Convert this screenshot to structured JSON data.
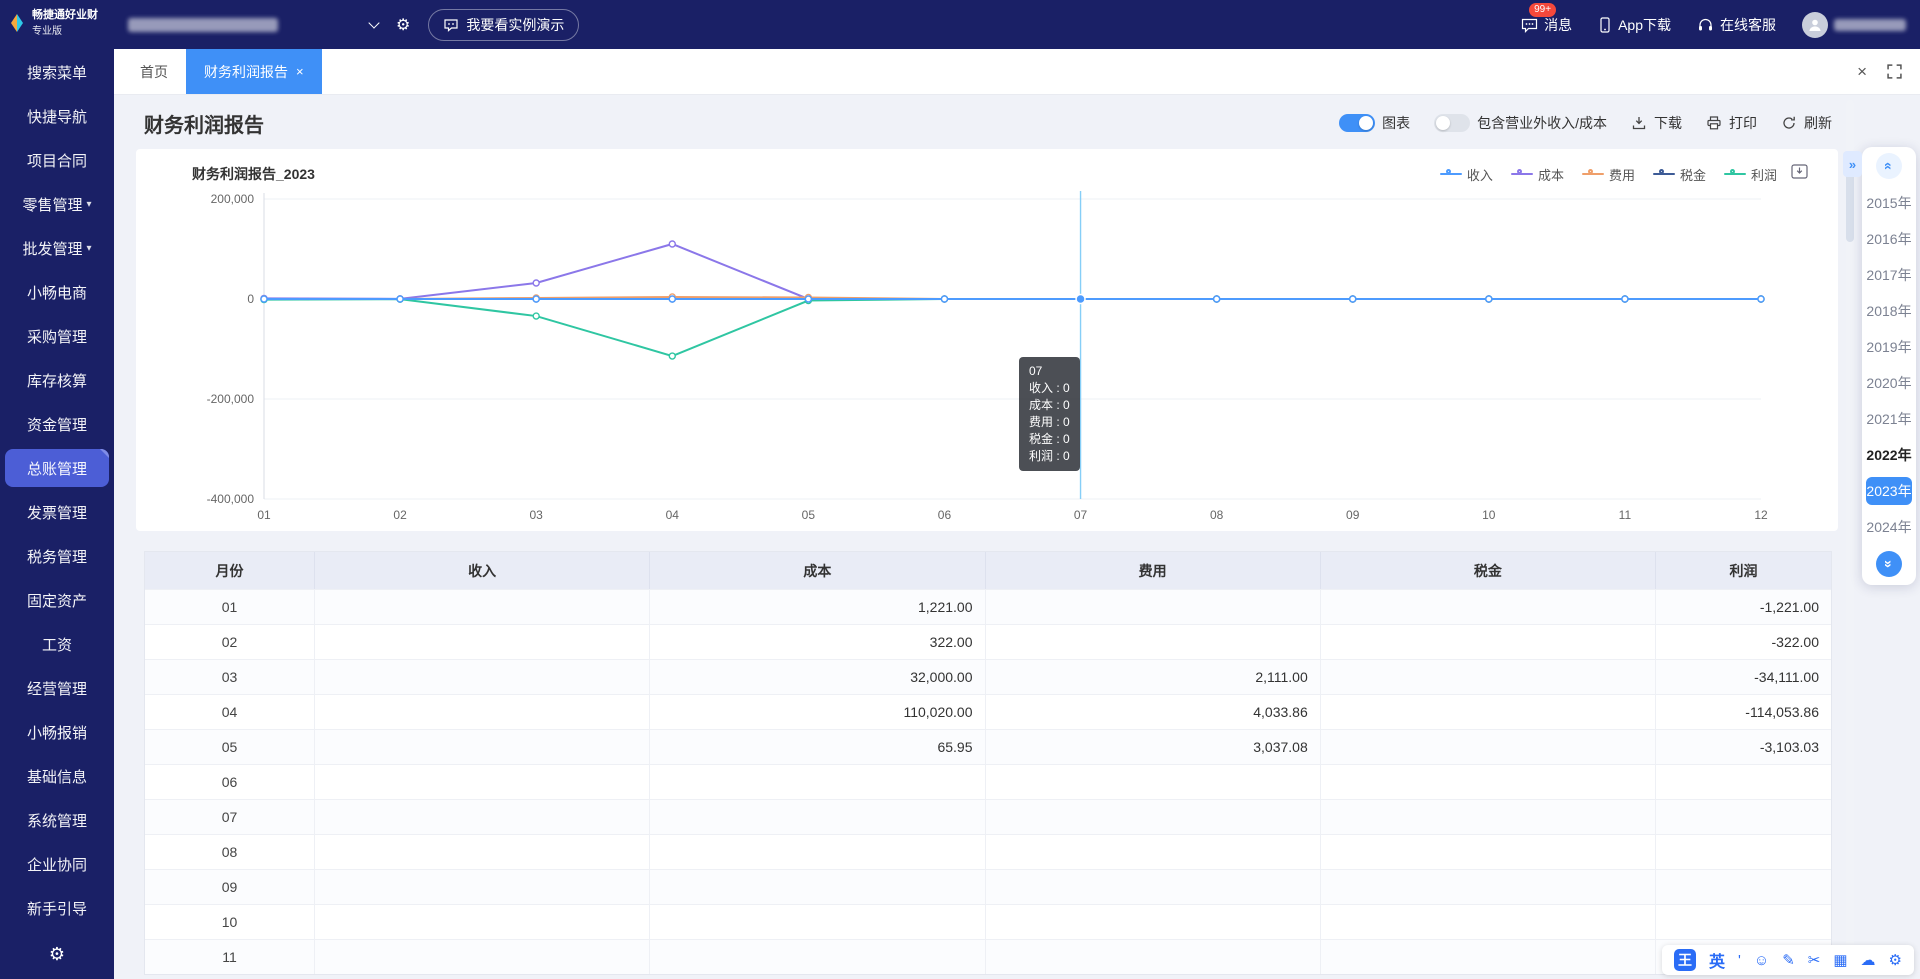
{
  "app": {
    "logo_title": "畅捷通好业财",
    "logo_subtitle": "专业版"
  },
  "topbar": {
    "demo_label": "我要看实例演示",
    "messages_label": "消息",
    "messages_badge": "99+",
    "app_download_label": "App下载",
    "support_label": "在线客服"
  },
  "tabs": [
    {
      "label": "首页",
      "active": false,
      "closable": false
    },
    {
      "label": "财务利润报告",
      "active": true,
      "closable": true
    }
  ],
  "sidebar": {
    "items": [
      {
        "id": "search-menu",
        "label": "搜索菜单"
      },
      {
        "id": "quick-nav",
        "label": "快捷导航"
      },
      {
        "id": "project-contract",
        "label": "项目合同"
      },
      {
        "id": "retail",
        "label": "零售管理",
        "caret": true
      },
      {
        "id": "wholesale",
        "label": "批发管理",
        "caret": true
      },
      {
        "id": "ecommerce",
        "label": "小畅电商"
      },
      {
        "id": "purchase",
        "label": "采购管理"
      },
      {
        "id": "inventory-accounting",
        "label": "库存核算"
      },
      {
        "id": "funds",
        "label": "资金管理"
      },
      {
        "id": "general-ledger",
        "label": "总账管理",
        "active": true
      },
      {
        "id": "invoice",
        "label": "发票管理"
      },
      {
        "id": "tax",
        "label": "税务管理"
      },
      {
        "id": "fixed-assets",
        "label": "固定资产"
      },
      {
        "id": "payroll",
        "label": "工资"
      },
      {
        "id": "operations",
        "label": "经营管理"
      },
      {
        "id": "expense",
        "label": "小畅报销"
      },
      {
        "id": "base-info",
        "label": "基础信息"
      },
      {
        "id": "system",
        "label": "系统管理"
      },
      {
        "id": "collaboration",
        "label": "企业协同"
      },
      {
        "id": "beginner-guide",
        "label": "新手引导"
      }
    ]
  },
  "page": {
    "title": "财务利润报告",
    "chart_toggle_label": "图表",
    "chart_toggle_on": true,
    "include_toggle_label": "包含营业外收入/成本",
    "include_toggle_on": false,
    "download_label": "下载",
    "print_label": "打印",
    "refresh_label": "刷新"
  },
  "chart_data": {
    "type": "line",
    "title": "财务利润报告_2023",
    "x": [
      "01",
      "02",
      "03",
      "04",
      "05",
      "06",
      "07",
      "08",
      "09",
      "10",
      "11",
      "12"
    ],
    "series": [
      {
        "name": "收入",
        "color": "#4d9bfe",
        "values": [
          0,
          0,
          0,
          0,
          0,
          0,
          0,
          0,
          0,
          0,
          0,
          0
        ]
      },
      {
        "name": "成本",
        "color": "#8b77e9",
        "values": [
          1221,
          322,
          32000,
          110020,
          65.95,
          0,
          0,
          0,
          0,
          0,
          0,
          0
        ]
      },
      {
        "name": "费用",
        "color": "#ef9f6a",
        "values": [
          0,
          0,
          2111,
          4033.86,
          3037.08,
          0,
          0,
          0,
          0,
          0,
          0,
          0
        ]
      },
      {
        "name": "税金",
        "color": "#3d5b96",
        "values": [
          0,
          0,
          0,
          0,
          0,
          0,
          0,
          0,
          0,
          0,
          0,
          0
        ]
      },
      {
        "name": "利润",
        "color": "#2fc6a2",
        "values": [
          -1221,
          -322,
          -34111,
          -114053.86,
          -3103.03,
          0,
          0,
          0,
          0,
          0,
          0,
          0
        ]
      }
    ],
    "ylim": [
      -400000,
      200000
    ],
    "yticks": [
      200000,
      0,
      -200000,
      -400000
    ],
    "grid": true,
    "legend_position": "top-right",
    "highlight": {
      "series": "收入",
      "month_index": 6
    }
  },
  "tooltip": {
    "title": "07",
    "lines": [
      "收入 : 0",
      "成本 : 0",
      "费用 : 0",
      "税金 : 0",
      "利润 : 0"
    ]
  },
  "table": {
    "headers": [
      "月份",
      "收入",
      "成本",
      "费用",
      "税金",
      "利润"
    ],
    "rows": [
      [
        "01",
        "",
        "1,221.00",
        "",
        "",
        "-1,221.00"
      ],
      [
        "02",
        "",
        "322.00",
        "",
        "",
        "-322.00"
      ],
      [
        "03",
        "",
        "32,000.00",
        "2,111.00",
        "",
        "-34,111.00"
      ],
      [
        "04",
        "",
        "110,020.00",
        "4,033.86",
        "",
        "-114,053.86"
      ],
      [
        "05",
        "",
        "65.95",
        "3,037.08",
        "",
        "-3,103.03"
      ],
      [
        "06",
        "",
        "",
        "",
        "",
        ""
      ],
      [
        "07",
        "",
        "",
        "",
        "",
        ""
      ],
      [
        "08",
        "",
        "",
        "",
        "",
        ""
      ],
      [
        "09",
        "",
        "",
        "",
        "",
        ""
      ],
      [
        "10",
        "",
        "",
        "",
        "",
        ""
      ],
      [
        "11",
        "",
        "",
        "",
        "",
        ""
      ]
    ]
  },
  "year_panel": {
    "years": [
      {
        "label": "2015年"
      },
      {
        "label": "2016年"
      },
      {
        "label": "2017年"
      },
      {
        "label": "2018年"
      },
      {
        "label": "2019年"
      },
      {
        "label": "2020年"
      },
      {
        "label": "2021年"
      },
      {
        "label": "2022年",
        "state": "strong"
      },
      {
        "label": "2023年",
        "state": "active"
      },
      {
        "label": "2024年"
      }
    ]
  },
  "ime": {
    "logo": "王",
    "mode": "英",
    "icons": [
      "'",
      "☺",
      "✎",
      "✂",
      "▦",
      "☁",
      "⚙"
    ]
  },
  "colors": {
    "accent_blue": "#3f90f7",
    "sidebar_bg": "#1a2066",
    "active_nav_bg": "#4c5ed6",
    "badge_red": "#f5483b",
    "crosshair": "#86cef7"
  }
}
